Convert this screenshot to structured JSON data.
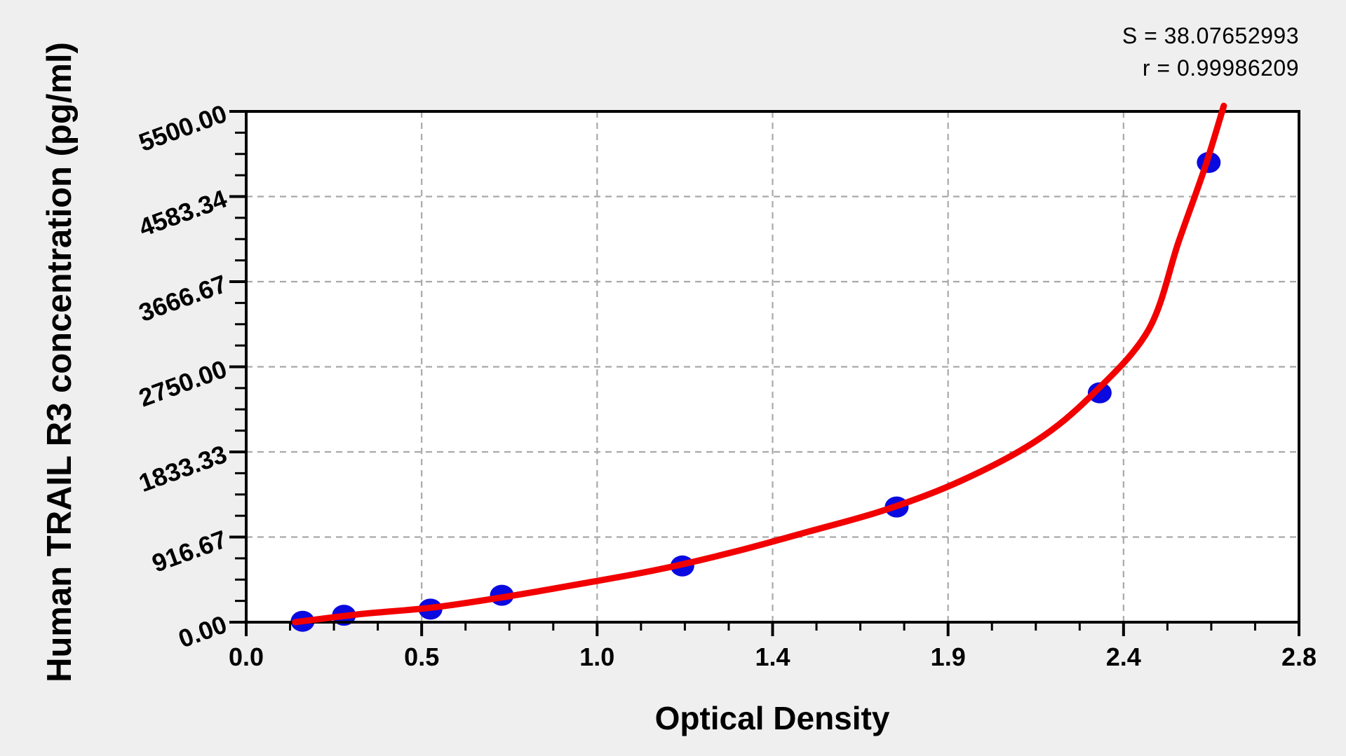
{
  "stats": {
    "s": "S = 38.07652993",
    "r": "r = 0.99986209"
  },
  "chart_data": {
    "type": "scatter",
    "title": "",
    "xlabel": "Optical Density",
    "ylabel": "Human TRAIL R3 concentration (pg/ml)",
    "xlim": [
      0,
      2.8
    ],
    "ylim": [
      0,
      5500
    ],
    "x_tick_labels": [
      "0.0",
      "0.5",
      "1.0",
      "1.4",
      "1.9",
      "2.4",
      "2.8"
    ],
    "y_tick_labels": [
      "0.00",
      "916.67",
      "1833.33",
      "2750.00",
      "3666.67",
      "4583.34",
      "5500.00"
    ],
    "minor_ticks_per_interval": 3,
    "grid": "dashed gray lines at major ticks, on",
    "legend": "none",
    "series": [
      {
        "name": "standard points",
        "type": "scatter",
        "x": [
          0.15,
          0.26,
          0.49,
          0.68,
          1.16,
          1.73,
          2.27,
          2.56
        ],
        "y": [
          10,
          75,
          140,
          290,
          605,
          1240,
          2470,
          4950
        ]
      },
      {
        "name": "fitted curve",
        "type": "line",
        "x": [
          0.13,
          0.3,
          0.5,
          0.7,
          0.9,
          1.1,
          1.3,
          1.5,
          1.7,
          1.9,
          2.1,
          2.25,
          2.4,
          2.48,
          2.55,
          2.6
        ],
        "y": [
          0,
          85,
          160,
          280,
          420,
          570,
          760,
          980,
          1210,
          1520,
          1950,
          2450,
          3150,
          4100,
          4900,
          5560
        ]
      }
    ],
    "fit_stats": {
      "S": "38.07652993",
      "r": "0.99986209"
    },
    "colors": {
      "point": "#0a0ae0",
      "curve": "#f20000",
      "grid": "#a9a9a9",
      "frame": "#000000",
      "plot_bg": "#ffffff",
      "page_bg": "#efefef",
      "text": "#000000"
    }
  }
}
